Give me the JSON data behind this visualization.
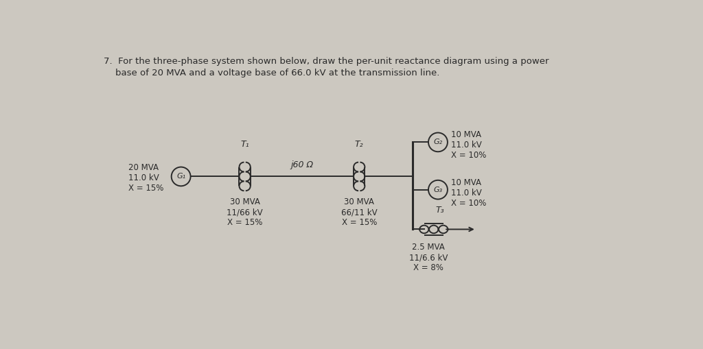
{
  "bg_color": "#ccc8c0",
  "text_color": "#2a2a2a",
  "G1_label": "G₁",
  "G1_specs": "20 MVA\n11.0 kV\nX = 15%",
  "T1_label": "T₁",
  "T1_specs": "30 MVA\n11/66 kV\nX = 15%",
  "line_label": "j60 Ω",
  "T2_label": "T₂",
  "T2_specs": "30 MVA\n66/11 kV\nX = 15%",
  "G2_label": "G₂",
  "G2_specs": "10 MVA\n11.0 kV\nX = 10%",
  "G3_label": "G₃",
  "G3_specs": "10 MVA\n11.0 kV\nX = 10%",
  "T3_label": "T₃",
  "T3_specs": "2.5 MVA\n11/6.6 kV\nX = 8%",
  "title_line1": "7.  For the three-phase system shown below, draw the per-unit reactance diagram using a power",
  "title_line2": "    base of 20 MVA and a voltage base of 66.0 kV at the transmission line."
}
